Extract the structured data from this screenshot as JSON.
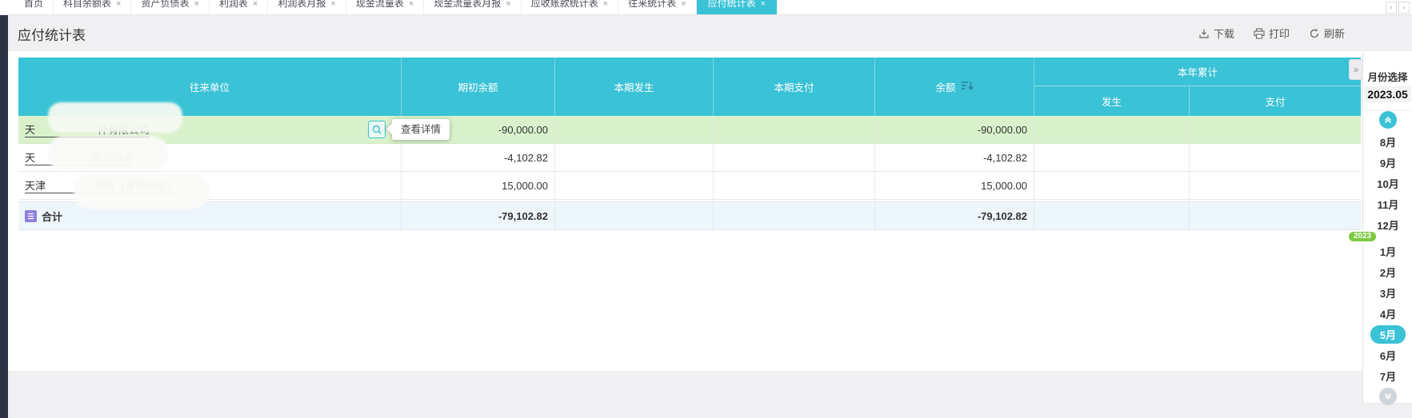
{
  "app": {
    "title": "应付统计表"
  },
  "tabs": {
    "items": [
      {
        "label": "首页",
        "closable": false,
        "active": false
      },
      {
        "label": "科目余额表",
        "closable": true,
        "active": false
      },
      {
        "label": "资产负债表",
        "closable": true,
        "active": false
      },
      {
        "label": "利润表",
        "closable": true,
        "active": false
      },
      {
        "label": "利润表月报",
        "closable": true,
        "active": false
      },
      {
        "label": "现金流量表",
        "closable": true,
        "active": false
      },
      {
        "label": "现金流量表月报",
        "closable": true,
        "active": false
      },
      {
        "label": "应收账款统计表",
        "closable": true,
        "active": false
      },
      {
        "label": "往来统计表",
        "closable": true,
        "active": false
      },
      {
        "label": "应付统计表",
        "closable": true,
        "active": true
      }
    ]
  },
  "toolbar": {
    "download": "下载",
    "print": "打印",
    "refresh": "刷新"
  },
  "table": {
    "columns": {
      "unit": "往来单位",
      "opening": "期初余额",
      "current_occur": "本期发生",
      "current_pay": "本期支付",
      "balance": "余额",
      "year_total": "本年累计",
      "year_occur": "发生",
      "year_pay": "支付"
    },
    "row_tooltip": "查看详情",
    "rows": [
      {
        "prefix": "天",
        "suffix": "件有限公司",
        "opening": "-90,000.00",
        "occur": "",
        "pay": "",
        "balance": "-90,000.00",
        "y_occur": "",
        "y_pay": ""
      },
      {
        "prefix": "天",
        "suffix": "务师协会",
        "opening": "-4,102.82",
        "occur": "",
        "pay": "",
        "balance": "-4,102.82",
        "y_occur": "",
        "y_pay": ""
      },
      {
        "prefix": "天津",
        "suffix": "务所（普通合伙）",
        "opening": "15,000.00",
        "occur": "",
        "pay": "",
        "balance": "15,000.00",
        "y_occur": "",
        "y_pay": ""
      }
    ],
    "total": {
      "label": "合计",
      "opening": "-79,102.82",
      "occur": "",
      "pay": "",
      "balance": "-79,102.82",
      "y_occur": "",
      "y_pay": ""
    }
  },
  "sidebar": {
    "title": "月份选择",
    "period": "2023.05",
    "year_badge": "2023",
    "months": [
      "8月",
      "9月",
      "10月",
      "11月",
      "12月",
      "1月",
      "2月",
      "3月",
      "4月",
      "5月",
      "6月",
      "7月"
    ],
    "active_month": "5月"
  },
  "colors": {
    "accent_teal": "#3ac2d6",
    "row_highlight_green": "#d9f2cc",
    "total_row_blue": "#edf6fb",
    "year_badge_green": "#7cc93f",
    "left_rail_dark": "#2d3346"
  }
}
